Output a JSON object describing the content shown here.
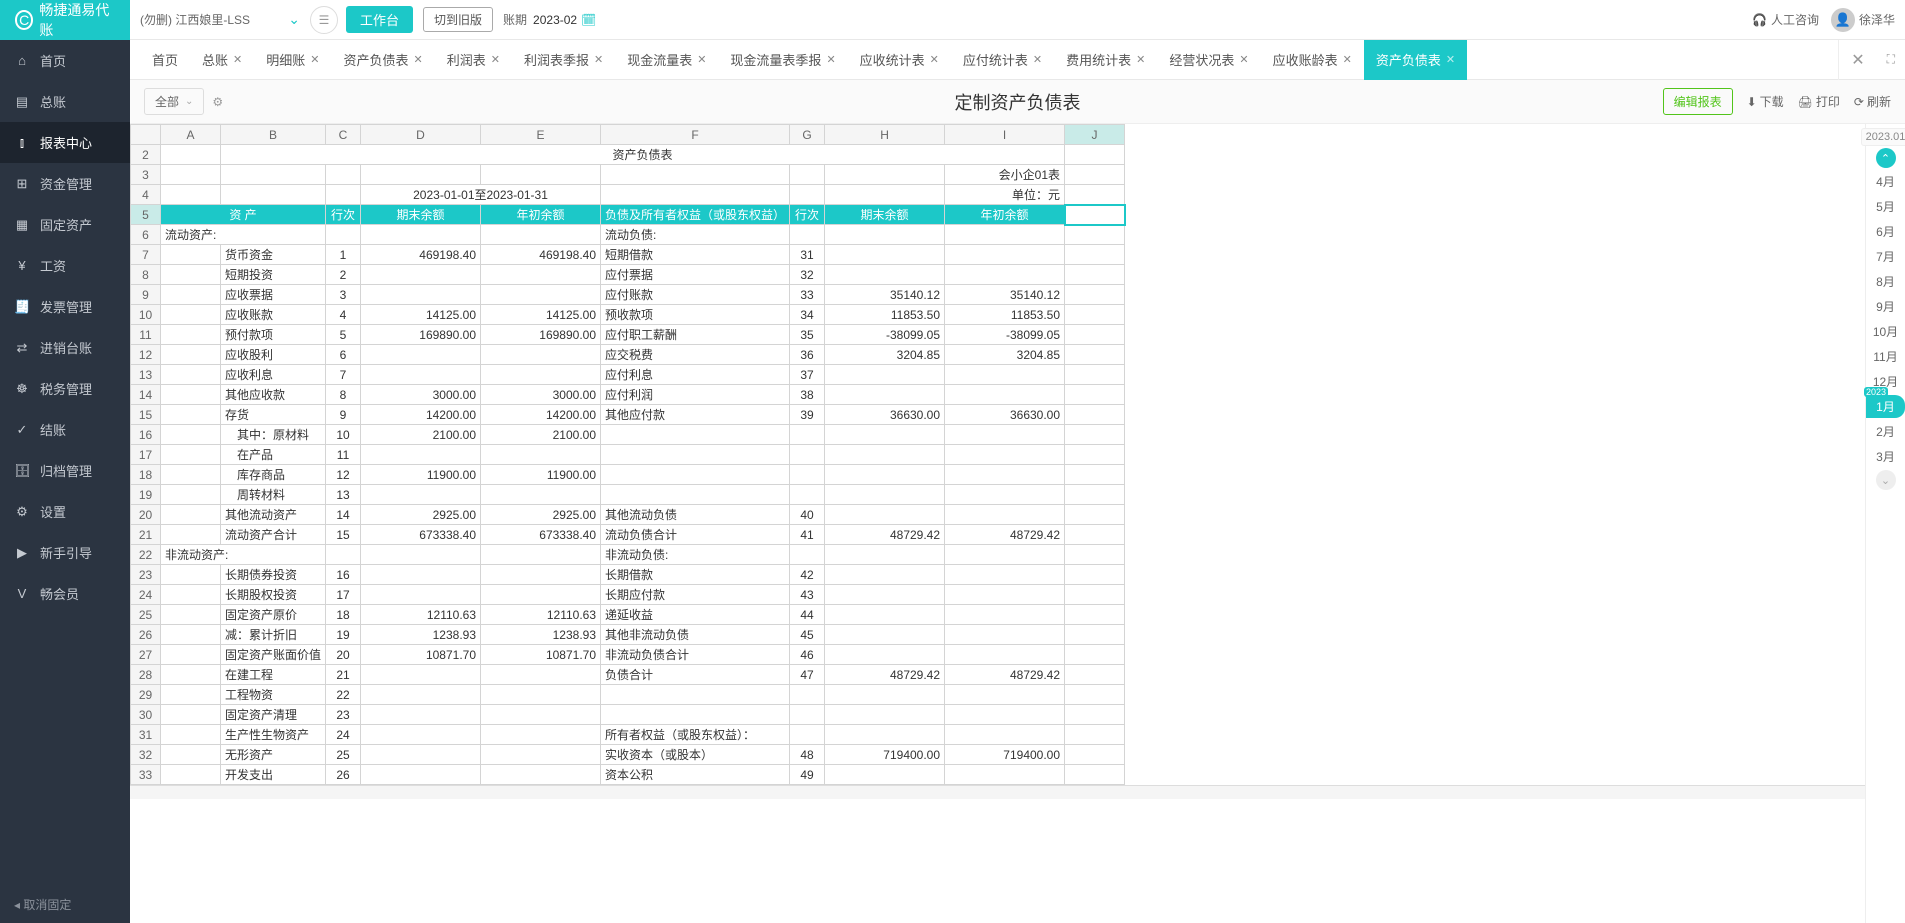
{
  "header": {
    "logo_text": "畅捷通易代账",
    "account_name": "(勿删) 江西娘里-LSS",
    "workspace_btn": "工作台",
    "switch_old": "切到旧版",
    "period_label": "账期",
    "period_value": "2023-02",
    "consult": "人工咨询",
    "user_name": "徐泽华"
  },
  "sidebar": {
    "items": [
      {
        "icon": "⌂",
        "label": "首页"
      },
      {
        "icon": "▤",
        "label": "总账"
      },
      {
        "icon": "⫾",
        "label": "报表中心"
      },
      {
        "icon": "⊞",
        "label": "资金管理"
      },
      {
        "icon": "▦",
        "label": "固定资产"
      },
      {
        "icon": "¥",
        "label": "工资"
      },
      {
        "icon": "🧾",
        "label": "发票管理"
      },
      {
        "icon": "⇄",
        "label": "进销台账"
      },
      {
        "icon": "☸",
        "label": "税务管理"
      },
      {
        "icon": "✓",
        "label": "结账"
      },
      {
        "icon": "🗄",
        "label": "归档管理"
      },
      {
        "icon": "⚙",
        "label": "设置"
      },
      {
        "icon": "▶",
        "label": "新手引导"
      },
      {
        "icon": "V",
        "label": "畅会员"
      }
    ],
    "active_index": 2,
    "footer": "◂ 取消固定"
  },
  "tabs": {
    "items": [
      {
        "label": "首页",
        "closable": false
      },
      {
        "label": "总账",
        "closable": true
      },
      {
        "label": "明细账",
        "closable": true
      },
      {
        "label": "资产负债表",
        "closable": true
      },
      {
        "label": "利润表",
        "closable": true
      },
      {
        "label": "利润表季报",
        "closable": true
      },
      {
        "label": "现金流量表",
        "closable": true
      },
      {
        "label": "现金流量表季报",
        "closable": true
      },
      {
        "label": "应收统计表",
        "closable": true
      },
      {
        "label": "应付统计表",
        "closable": true
      },
      {
        "label": "费用统计表",
        "closable": true
      },
      {
        "label": "经营状况表",
        "closable": true
      },
      {
        "label": "应收账龄表",
        "closable": true
      },
      {
        "label": "资产负债表",
        "closable": true
      }
    ],
    "active_index": 13
  },
  "toolbar": {
    "filter": "全部",
    "page_title": "定制资产负债表",
    "edit_btn": "编辑报表",
    "download": "下载",
    "print": "打印",
    "refresh": "刷新"
  },
  "month_rail": {
    "year_label": "2023.01",
    "months": [
      "4月",
      "5月",
      "6月",
      "7月",
      "8月",
      "9月",
      "10月",
      "11月",
      "12月",
      "1月",
      "2月",
      "3月"
    ],
    "active_index": 9
  },
  "sheet": {
    "columns": [
      "A",
      "B",
      "C",
      "D",
      "E",
      "F",
      "G",
      "H",
      "I",
      "J"
    ],
    "title_row": {
      "text": "资产负债表"
    },
    "period_text": "2023-01-01至2023-01-31",
    "company_text": "会小企01表",
    "unit_text": "单位：元",
    "header_cells": [
      "资 产",
      "行次",
      "期末余额",
      "年初余额",
      "负债及所有者权益（或股东权益）",
      "行次",
      "期末余额",
      "年初余额"
    ],
    "selected_cell": "J5",
    "rows": [
      {
        "n": 6,
        "a": "流动资产:",
        "f": "流动负债:"
      },
      {
        "n": 7,
        "b": "货币资金",
        "c": "1",
        "d": "469198.40",
        "e": "469198.40",
        "f": "短期借款",
        "g": "31"
      },
      {
        "n": 8,
        "b": "短期投资",
        "c": "2",
        "f": "应付票据",
        "g": "32"
      },
      {
        "n": 9,
        "b": "应收票据",
        "c": "3",
        "f": "应付账款",
        "g": "33",
        "h": "35140.12",
        "i": "35140.12"
      },
      {
        "n": 10,
        "b": "应收账款",
        "c": "4",
        "d": "14125.00",
        "e": "14125.00",
        "f": "预收款项",
        "g": "34",
        "h": "11853.50",
        "i": "11853.50"
      },
      {
        "n": 11,
        "b": "预付款项",
        "c": "5",
        "d": "169890.00",
        "e": "169890.00",
        "f": "应付职工薪酬",
        "g": "35",
        "h": "-38099.05",
        "i": "-38099.05"
      },
      {
        "n": 12,
        "b": "应收股利",
        "c": "6",
        "f": "应交税费",
        "g": "36",
        "h": "3204.85",
        "i": "3204.85"
      },
      {
        "n": 13,
        "b": "应收利息",
        "c": "7",
        "f": "应付利息",
        "g": "37"
      },
      {
        "n": 14,
        "b": "其他应收款",
        "c": "8",
        "d": "3000.00",
        "e": "3000.00",
        "f": "应付利润",
        "g": "38"
      },
      {
        "n": 15,
        "b": "存货",
        "c": "9",
        "d": "14200.00",
        "e": "14200.00",
        "f": "其他应付款",
        "g": "39",
        "h": "36630.00",
        "i": "36630.00"
      },
      {
        "n": 16,
        "b": "　其中：原材料",
        "c": "10",
        "d": "2100.00",
        "e": "2100.00"
      },
      {
        "n": 17,
        "b": "　在产品",
        "c": "11"
      },
      {
        "n": 18,
        "b": "　库存商品",
        "c": "12",
        "d": "11900.00",
        "e": "11900.00"
      },
      {
        "n": 19,
        "b": "　周转材料",
        "c": "13"
      },
      {
        "n": 20,
        "b": "其他流动资产",
        "c": "14",
        "d": "2925.00",
        "e": "2925.00",
        "f": "其他流动负债",
        "g": "40"
      },
      {
        "n": 21,
        "b": "流动资产合计",
        "c": "15",
        "d": "673338.40",
        "e": "673338.40",
        "f": "流动负债合计",
        "g": "41",
        "h": "48729.42",
        "i": "48729.42"
      },
      {
        "n": 22,
        "a": "非流动资产:",
        "f": "非流动负债:"
      },
      {
        "n": 23,
        "b": "长期债券投资",
        "c": "16",
        "f": "长期借款",
        "g": "42"
      },
      {
        "n": 24,
        "b": "长期股权投资",
        "c": "17",
        "f": "长期应付款",
        "g": "43"
      },
      {
        "n": 25,
        "b": "固定资产原价",
        "c": "18",
        "d": "12110.63",
        "e": "12110.63",
        "f": "递延收益",
        "g": "44"
      },
      {
        "n": 26,
        "b": "减：累计折旧",
        "c": "19",
        "d": "1238.93",
        "e": "1238.93",
        "f": "其他非流动负债",
        "g": "45"
      },
      {
        "n": 27,
        "b": "固定资产账面价值",
        "c": "20",
        "d": "10871.70",
        "e": "10871.70",
        "f": "非流动负债合计",
        "g": "46"
      },
      {
        "n": 28,
        "b": "在建工程",
        "c": "21",
        "f": "负债合计",
        "g": "47",
        "h": "48729.42",
        "i": "48729.42"
      },
      {
        "n": 29,
        "b": "工程物资",
        "c": "22"
      },
      {
        "n": 30,
        "b": "固定资产清理",
        "c": "23"
      },
      {
        "n": 31,
        "b": "生产性生物资产",
        "c": "24",
        "f": "所有者权益（或股东权益）："
      },
      {
        "n": 32,
        "b": "无形资产",
        "c": "25",
        "f": "实收资本（或股本）",
        "g": "48",
        "h": "719400.00",
        "i": "719400.00"
      },
      {
        "n": 33,
        "b": "开发支出",
        "c": "26",
        "f": "资本公积",
        "g": "49"
      }
    ]
  },
  "colors": {
    "primary": "#1cc8c8",
    "sidebar_bg": "#2b3441",
    "grid_border": "#d4d4d4",
    "header_bg": "#f5f5f5"
  }
}
